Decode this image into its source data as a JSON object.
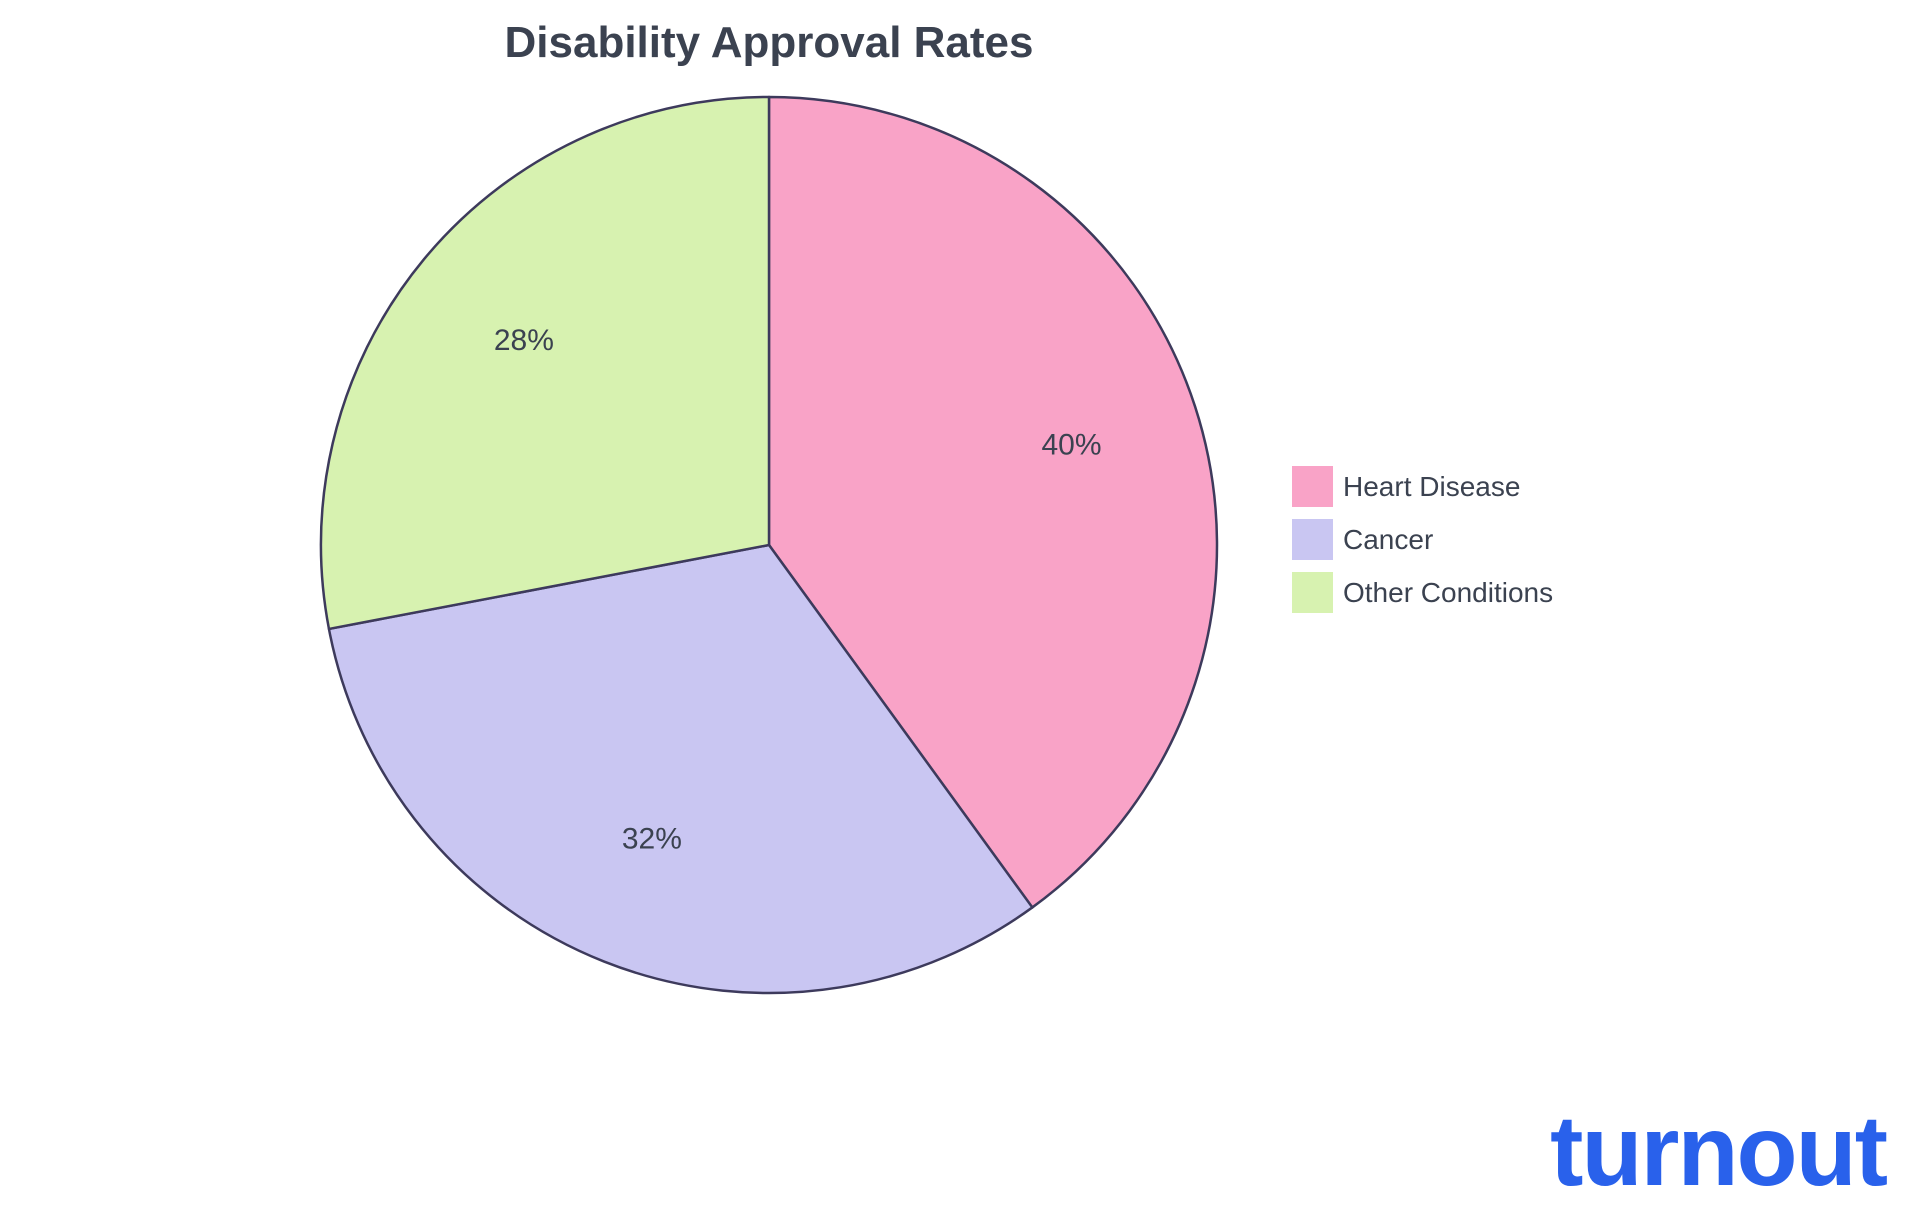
{
  "chart_data": {
    "type": "pie",
    "title": "Disability Approval Rates",
    "labels": [
      "Heart Disease",
      "Cancer",
      "Other Conditions"
    ],
    "values": [
      40,
      32,
      28
    ],
    "value_labels": [
      "40%",
      "32%",
      "28%"
    ],
    "colors": [
      "#f9a3c7",
      "#c9c6f2",
      "#d7f2b0"
    ],
    "stroke_color": "#3d3a5c",
    "text_color": "#3b4250",
    "legend_position": "right",
    "start_angle_deg": 0,
    "direction": "clockwise"
  },
  "brand": {
    "logo_text": "turnout",
    "logo_color": "#2961eb"
  }
}
